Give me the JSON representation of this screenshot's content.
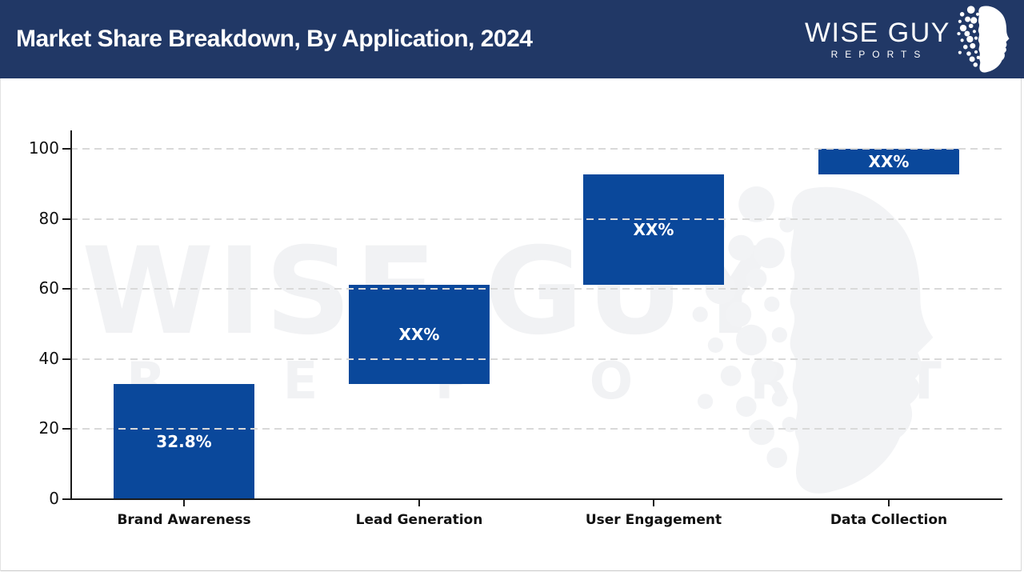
{
  "header": {
    "title": "Market Share Breakdown, By Application, 2024",
    "brand": {
      "line1": "WISE GUY",
      "line2": "REPORTS"
    }
  },
  "watermark": {
    "line1": "WISE GUY",
    "line2": "R E P O R T S"
  },
  "colors": {
    "header_bg": "#213866",
    "bar": "#0a489b",
    "grid": "#d9d9d9",
    "axis": "#1a1a1a",
    "watermark": "#f1f2f4",
    "bar_label": "#ffffff"
  },
  "chart_data": {
    "type": "bar",
    "subtype": "waterfall",
    "title": "Market Share Breakdown, By Application, 2024",
    "xlabel": "",
    "ylabel": "",
    "categories": [
      "Brand Awareness",
      "Lead Generation",
      "User Engagement",
      "Data Collection"
    ],
    "segments": [
      {
        "category": "Brand Awareness",
        "start": 0,
        "end": 32.8,
        "label": "32.8%"
      },
      {
        "category": "Lead Generation",
        "start": 32.8,
        "end": 61.2,
        "label": "XX%"
      },
      {
        "category": "User Engagement",
        "start": 61.2,
        "end": 92.7,
        "label": "XX%"
      },
      {
        "category": "Data Collection",
        "start": 92.7,
        "end": 100,
        "label": "XX%"
      }
    ],
    "yticks": [
      0,
      20,
      40,
      60,
      80,
      100
    ],
    "ylim": [
      0,
      105
    ],
    "grid": "horizontal-dashed",
    "legend": null
  }
}
